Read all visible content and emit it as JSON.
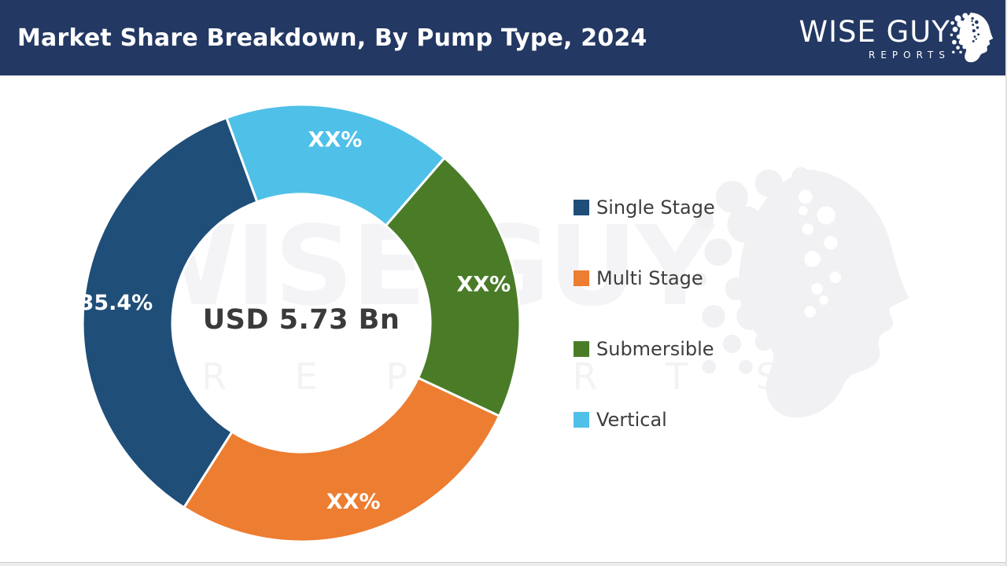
{
  "header": {
    "title": "Market Share Breakdown, By Pump Type, 2024",
    "background_color": "#233862",
    "logo": {
      "wordmark": "WISE GUY",
      "subtext": "REPORTS"
    }
  },
  "watermark": {
    "wordmark": "WISE GUY",
    "subtext": "R E P O R T S"
  },
  "chart_data": {
    "type": "pie",
    "subtype": "donut",
    "title": "Market Share Breakdown, By Pump Type, 2024",
    "center_label": "USD 5.73 Bn",
    "unit": "percent market share",
    "start_angle_deg": 110,
    "direction": "counterclockwise",
    "legend_position": "right",
    "segments": [
      {
        "name": "Single Stage",
        "value": 35.4,
        "display_label": "35.4%",
        "color": "#1F4E79"
      },
      {
        "name": "Multi Stage",
        "value": 27.0,
        "display_label": "XX%",
        "color": "#ED7D31"
      },
      {
        "name": "Submersible",
        "value": 20.6,
        "display_label": "XX%",
        "color": "#4A7C28"
      },
      {
        "name": "Vertical",
        "value": 16.9,
        "display_label": "XX%",
        "color": "#4FC0E8"
      }
    ]
  }
}
